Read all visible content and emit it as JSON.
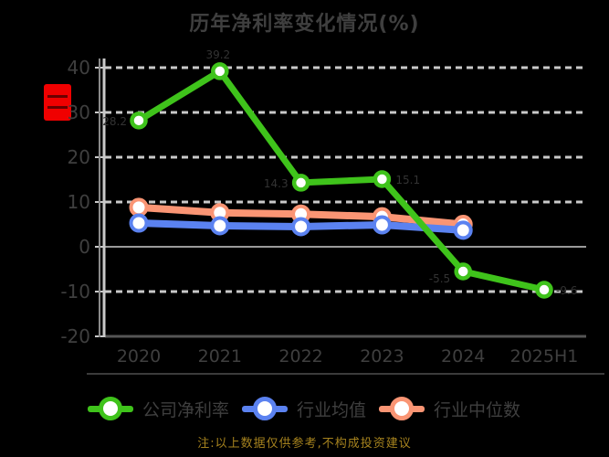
{
  "title": "历年净利率变化情况(%)",
  "footer": {
    "note": "注:以上数据仅供参考,不构成投资建议"
  },
  "watermark": {
    "name": "red-block-glyph",
    "color": "#f00000"
  },
  "colors": {
    "background": "#000000",
    "text": "#3f3f3f",
    "grid": "#c9c9c9",
    "zero_line": "#9a9a9a",
    "bottom_axis": "#555555",
    "separator": "#3b3b3b",
    "point_label": "#333333"
  },
  "chart_data": {
    "type": "line",
    "title": "历年净利率变化情况(%)",
    "xlabel": "",
    "ylabel": "",
    "categories": [
      "2020",
      "2021",
      "2022",
      "2023",
      "2024",
      "2025H1"
    ],
    "yticks": [
      40,
      30,
      20,
      10,
      0,
      -10,
      -20
    ],
    "ylim": [
      -20,
      40
    ],
    "grid": "dashed-horizontal",
    "legend_position": "bottom",
    "series": [
      {
        "name": "公司净利率",
        "color": "#3fc31b",
        "values": [
          28.2,
          39.2,
          14.3,
          15.1,
          -5.5,
          -9.6
        ],
        "labels": [
          "28.2",
          "39.2",
          "14.3",
          "15.1",
          "-5.5",
          "-9.6"
        ]
      },
      {
        "name": "行业均值",
        "color": "#5b82f0",
        "values": [
          5.3,
          4.7,
          4.5,
          4.9,
          3.7,
          null
        ],
        "labels": []
      },
      {
        "name": "行业中位数",
        "color": "#fa9574",
        "values": [
          8.8,
          7.6,
          7.3,
          6.7,
          5.0,
          null
        ],
        "labels": []
      }
    ]
  }
}
